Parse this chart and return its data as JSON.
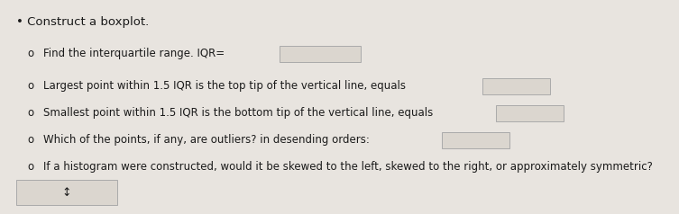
{
  "background_color": "#e8e4df",
  "bullet_text": "Construct a boxplot.",
  "items": [
    {
      "text": "Find the interquartile range. IQR=",
      "has_box": true,
      "box_after_text": true
    },
    {
      "text": "Largest point within 1.5 IQR is the top tip of the vertical line, equals",
      "has_box": true,
      "box_after_text": true
    },
    {
      "text": "Smallest point within 1.5 IQR is the bottom tip of the vertical line, equals",
      "has_box": true,
      "box_after_text": true
    },
    {
      "text": "Which of the points, if any, are outliers? in desending orders:",
      "has_box": true,
      "box_after_text": true
    },
    {
      "text": "If a histogram were constructed, would it be skewed to the left, skewed to the right, or approximately symmetric?",
      "has_box": false,
      "box_after_text": false
    }
  ],
  "text_color": "#1a1a1a",
  "box_color": "#dbd6cf",
  "box_edge_color": "#aaaaaa",
  "font_size": 8.5,
  "bullet_font_size": 9.5
}
